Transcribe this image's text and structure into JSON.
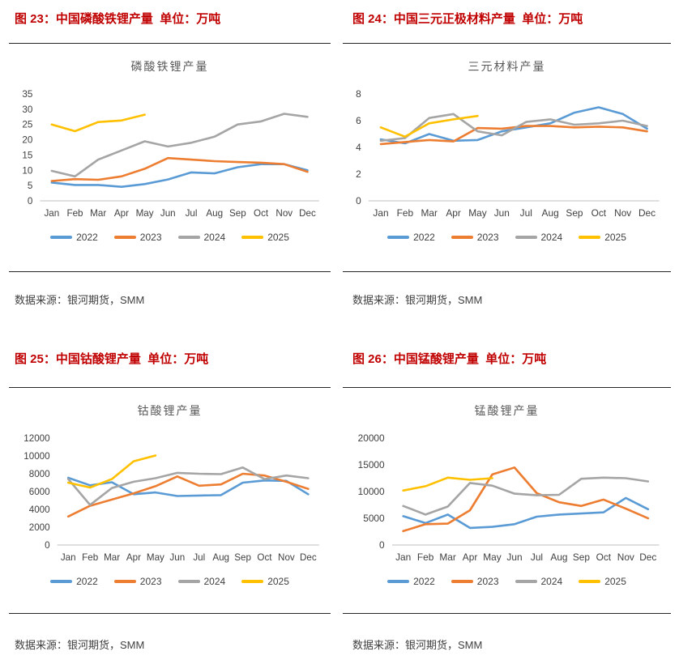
{
  "figures": [
    {
      "caption": "图 23：中国磷酸铁锂产量  单位：万吨",
      "source": "数据来源：银河期货，SMM"
    },
    {
      "caption": "图 24：中国三元正极材料产量  单位：万吨",
      "source": "数据来源：银河期货，SMM"
    },
    {
      "caption": "图 25：中国钴酸锂产量  单位：万吨",
      "source": "数据来源：银河期货，SMM"
    },
    {
      "caption": "图 26：中国锰酸锂产量  单位：万吨",
      "source": "数据来源：银河期货，SMM"
    }
  ],
  "palette": {
    "caption_red": "#c00000",
    "series_2022": "#5b9bd5",
    "series_2023": "#ed7d31",
    "series_2024": "#a5a5a5",
    "series_2025": "#ffc000",
    "axis_line": "#bfbfbf",
    "text_gray": "#595959"
  },
  "chart_data": [
    {
      "type": "line",
      "title": "磷酸铁锂产量",
      "legend_position": "bottom",
      "grid": false,
      "categories": [
        "Jan",
        "Feb",
        "Mar",
        "Apr",
        "May",
        "Jun",
        "Jul",
        "Aug",
        "Sep",
        "Oct",
        "Nov",
        "Dec"
      ],
      "yticks": [
        0,
        5,
        10,
        15,
        20,
        25,
        30,
        35
      ],
      "ylim": [
        0,
        35
      ],
      "series": [
        {
          "name": "2022",
          "color": "#5b9bd5",
          "values": [
            6,
            5.2,
            5.2,
            4.6,
            5.5,
            7,
            9.3,
            9,
            11,
            12,
            12,
            10
          ]
        },
        {
          "name": "2023",
          "color": "#ed7d31",
          "values": [
            6.5,
            7.1,
            6.9,
            8,
            10.5,
            14,
            13.5,
            13,
            12.7,
            12.5,
            12,
            9.5
          ]
        },
        {
          "name": "2024",
          "color": "#a5a5a5",
          "values": [
            9.8,
            8,
            13.5,
            16.5,
            19.5,
            17.8,
            19,
            21,
            25,
            26,
            28.5,
            27.5
          ]
        },
        {
          "name": "2025",
          "color": "#ffc000",
          "values": [
            25,
            22.8,
            25.8,
            26.3,
            28.2
          ]
        }
      ]
    },
    {
      "type": "line",
      "title": "三元材料产量",
      "legend_position": "bottom",
      "grid": false,
      "categories": [
        "Jan",
        "Feb",
        "Mar",
        "Apr",
        "May",
        "Jun",
        "Jul",
        "Aug",
        "Sep",
        "Oct",
        "Nov",
        "Dec"
      ],
      "yticks": [
        0,
        2,
        4,
        6,
        8
      ],
      "ylim": [
        0,
        8
      ],
      "series": [
        {
          "name": "2022",
          "color": "#5b9bd5",
          "values": [
            4.6,
            4.3,
            5.0,
            4.5,
            4.55,
            5.2,
            5.5,
            5.8,
            6.6,
            7.0,
            6.5,
            5.4
          ]
        },
        {
          "name": "2023",
          "color": "#ed7d31",
          "values": [
            4.25,
            4.4,
            4.55,
            4.45,
            5.45,
            5.4,
            5.6,
            5.6,
            5.5,
            5.55,
            5.5,
            5.2
          ]
        },
        {
          "name": "2024",
          "color": "#a5a5a5",
          "values": [
            4.5,
            4.7,
            6.2,
            6.5,
            5.2,
            4.9,
            5.9,
            6.1,
            5.7,
            5.8,
            6.0,
            5.6
          ]
        },
        {
          "name": "2025",
          "color": "#ffc000",
          "values": [
            5.5,
            4.8,
            5.8,
            6.1,
            6.35
          ]
        }
      ]
    },
    {
      "type": "line",
      "title": "钴酸锂产量",
      "legend_position": "bottom",
      "grid": false,
      "categories": [
        "Jan",
        "Feb",
        "Mar",
        "Apr",
        "May",
        "Jun",
        "Jul",
        "Aug",
        "Sep",
        "Oct",
        "Nov",
        "Dec"
      ],
      "yticks": [
        0,
        2000,
        4000,
        6000,
        8000,
        10000,
        12000
      ],
      "ylim": [
        0,
        12000
      ],
      "series": [
        {
          "name": "2022",
          "color": "#5b9bd5",
          "values": [
            7550,
            6700,
            7050,
            5700,
            5900,
            5500,
            5550,
            5600,
            7000,
            7250,
            7200,
            5700
          ]
        },
        {
          "name": "2023",
          "color": "#ed7d31",
          "values": [
            3200,
            4400,
            5100,
            5800,
            6600,
            7700,
            6650,
            6800,
            8000,
            7800,
            7100,
            6300
          ]
        },
        {
          "name": "2024",
          "color": "#a5a5a5",
          "values": [
            7400,
            4500,
            6400,
            7100,
            7500,
            8100,
            8000,
            7950,
            8700,
            7400,
            7800,
            7500
          ]
        },
        {
          "name": "2025",
          "color": "#ffc000",
          "values": [
            7000,
            6450,
            7400,
            9400,
            10050
          ]
        }
      ]
    },
    {
      "type": "line",
      "title": "锰酸锂产量",
      "legend_position": "bottom",
      "grid": false,
      "categories": [
        "Jan",
        "Feb",
        "Mar",
        "Apr",
        "May",
        "Jun",
        "Jul",
        "Aug",
        "Sep",
        "Oct",
        "Nov",
        "Dec"
      ],
      "yticks": [
        0,
        5000,
        10000,
        15000,
        20000
      ],
      "ylim": [
        0,
        20000
      ],
      "series": [
        {
          "name": "2022",
          "color": "#5b9bd5",
          "values": [
            5400,
            4100,
            5700,
            3200,
            3400,
            3900,
            5300,
            5700,
            5900,
            6100,
            8800,
            6700
          ]
        },
        {
          "name": "2023",
          "color": "#ed7d31",
          "values": [
            2600,
            3900,
            4000,
            6500,
            13200,
            14500,
            9700,
            8000,
            7300,
            8500,
            6800,
            5000
          ]
        },
        {
          "name": "2024",
          "color": "#a5a5a5",
          "values": [
            7300,
            5700,
            7200,
            11600,
            11100,
            9600,
            9300,
            9400,
            12400,
            12600,
            12500,
            11900
          ]
        },
        {
          "name": "2025",
          "color": "#ffc000",
          "values": [
            10200,
            11000,
            12600,
            12200,
            12500
          ]
        }
      ]
    }
  ]
}
